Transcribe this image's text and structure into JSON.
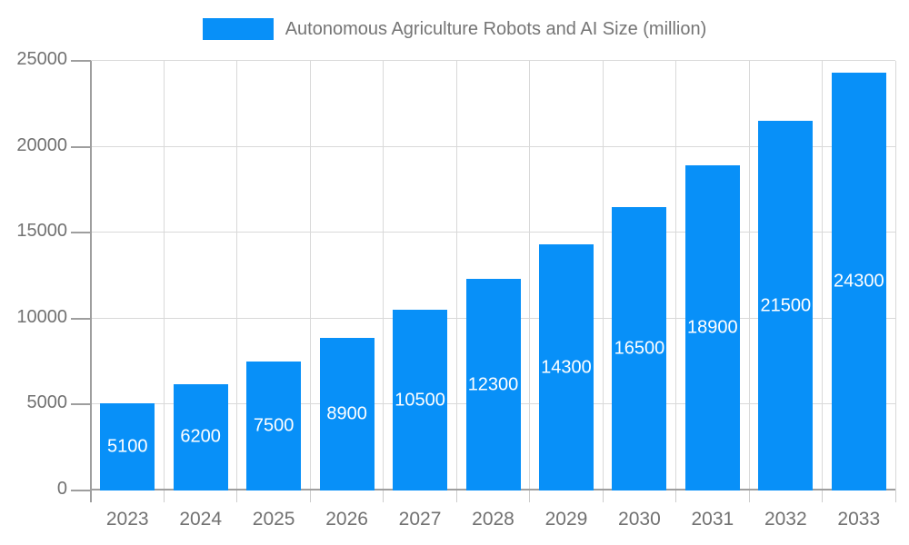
{
  "chart_data": {
    "type": "bar",
    "title": "Autonomous Agriculture Robots and AI Size (million)",
    "legend": {
      "label": "Autonomous Agriculture Robots and AI Size (million)",
      "position": "top-center"
    },
    "categories": [
      "2023",
      "2024",
      "2025",
      "2026",
      "2027",
      "2028",
      "2029",
      "2030",
      "2031",
      "2032",
      "2033"
    ],
    "values": [
      5100,
      6200,
      7500,
      8900,
      10500,
      12300,
      14300,
      16500,
      18900,
      21500,
      24300
    ],
    "value_labels_shown": true,
    "xlabel": "",
    "ylabel": "",
    "ylim": [
      0,
      25000
    ],
    "yticks": [
      0,
      5000,
      10000,
      15000,
      20000,
      25000
    ],
    "grid": true,
    "colors": {
      "bar": "#0890f8",
      "value_label": "#ffffff",
      "axis": "#9e9e9e",
      "gridline": "#d9d9d9",
      "tick_extension": "#cccccc",
      "tick_label": "#717171",
      "legend_text": "#757575",
      "background": "#ffffff"
    }
  }
}
